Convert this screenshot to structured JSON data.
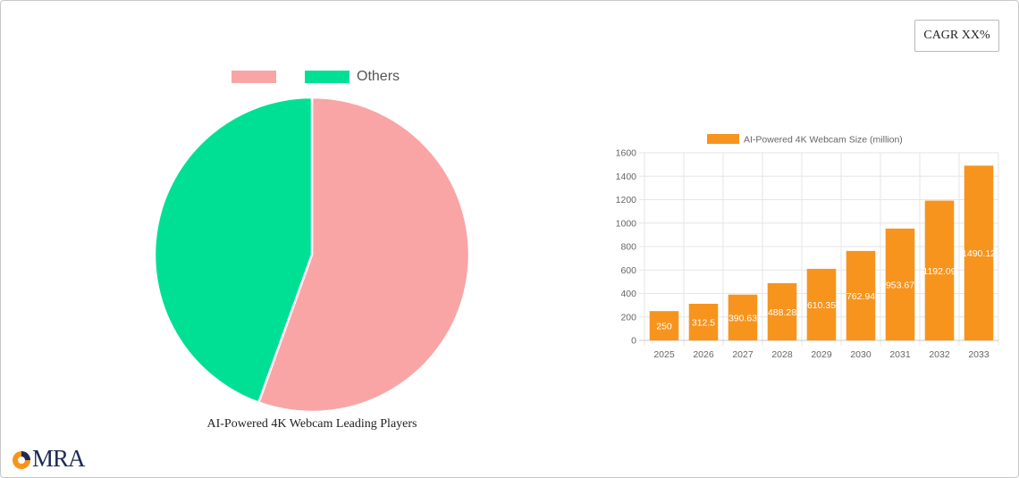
{
  "badge": {
    "cagr_label": "CAGR XX%"
  },
  "logo": {
    "text": "MRA"
  },
  "colors": {
    "pie_company": "#f9a5a5",
    "pie_others": "#00e094",
    "bar": "#f7941d"
  },
  "chart_data": [
    {
      "type": "pie",
      "title": "AI-Powered 4K Webcam Leading Players",
      "legend_position": "top",
      "slices": [
        {
          "label": "",
          "value": 55.5,
          "color": "#f9a5a5"
        },
        {
          "label": "Others",
          "value": 44.5,
          "color": "#00e094"
        }
      ]
    },
    {
      "type": "bar",
      "legend": "AI-Powered 4K Webcam Size (million)",
      "legend_position": "top",
      "categories": [
        "2025",
        "2026",
        "2027",
        "2028",
        "2029",
        "2030",
        "2031",
        "2032",
        "2033"
      ],
      "series": [
        {
          "name": "AI-Powered 4K Webcam Size (million)",
          "values": [
            250,
            312.5,
            390.63,
            488.28,
            610.35,
            762.94,
            953.67,
            1192.09,
            1490.12
          ],
          "data_labels": [
            "250",
            "312.5",
            "390.63",
            "488.28",
            "610.35",
            "762.94",
            "953.67",
            "1192.09",
            "1490.12"
          ]
        }
      ],
      "ylim": [
        0,
        1600
      ],
      "yticks": [
        0,
        200,
        400,
        600,
        800,
        1000,
        1200,
        1400,
        1600
      ],
      "grid": true
    }
  ]
}
